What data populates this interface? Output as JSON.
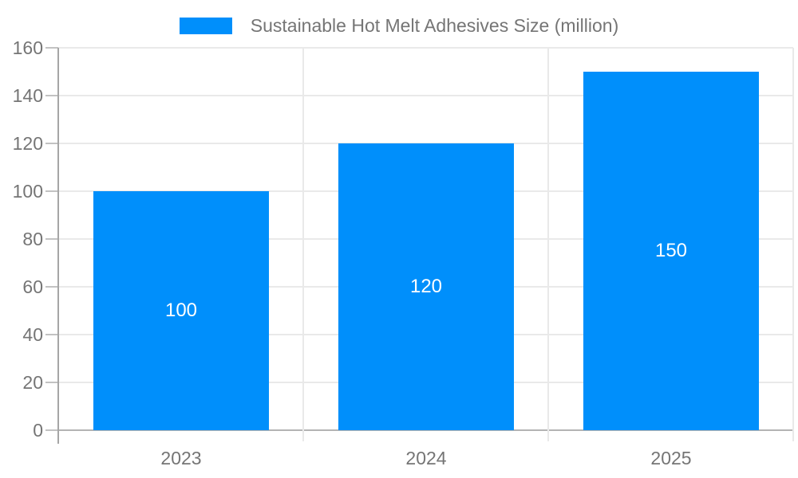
{
  "chart_data": {
    "type": "bar",
    "title": "",
    "series_name": "Sustainable Hot Melt Adhesives Size (million)",
    "categories": [
      "2023",
      "2024",
      "2025"
    ],
    "values": [
      100,
      120,
      150
    ],
    "data_labels": [
      "100",
      "120",
      "150"
    ],
    "xlabel": "",
    "ylabel": "",
    "ylim": [
      0,
      160
    ],
    "yticks": [
      0,
      20,
      40,
      60,
      80,
      100,
      120,
      140,
      160
    ],
    "grid": true,
    "legend_position": "top-center",
    "colors": {
      "bar": "#008FFB",
      "data_label": "#ffffff",
      "axis_text": "#757575",
      "gridline": "#e9e9e9",
      "baseline": "#b3b3b3",
      "axis_line": "#a6a6a6",
      "tick": "#c2c2c2",
      "background": "#ffffff"
    }
  }
}
